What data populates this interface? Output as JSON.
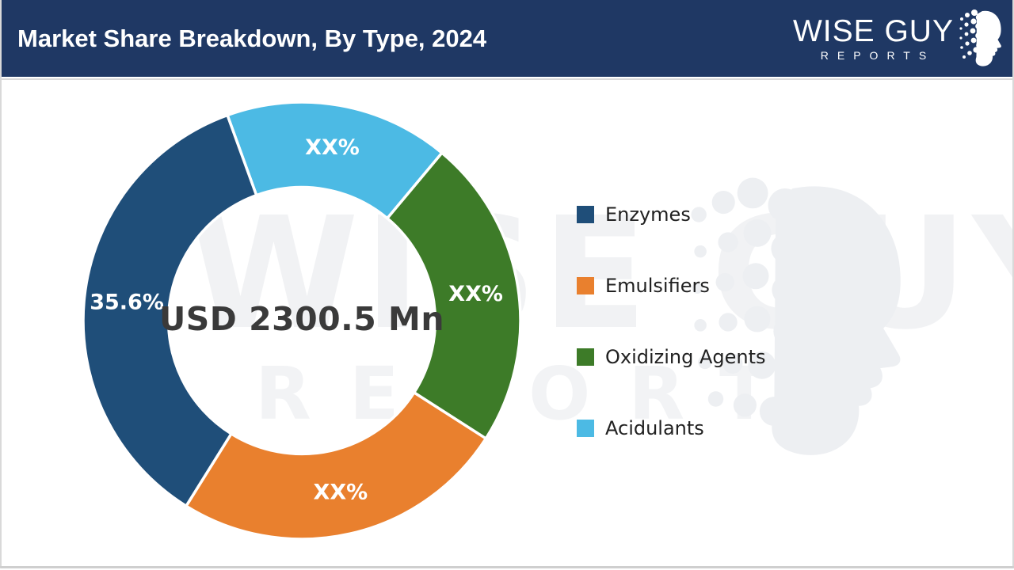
{
  "header": {
    "title": "Market Share Breakdown, By Type, 2024",
    "bg_color": "#1F3864",
    "logo_line1": "WISE GUY",
    "logo_line2": "REPORTS"
  },
  "watermark": {
    "line1": "WISE GUY",
    "line2": "REPORTS"
  },
  "chart_data": {
    "type": "donut",
    "center_label": "USD 2300.5 Mn",
    "start_angle_deg": -19.9,
    "direction": "clockwise",
    "inner_radius_ratio": 0.61,
    "slices": [
      {
        "label": "Acidulants",
        "value_pct": 16.6,
        "display_label": "XX%",
        "color": "#4CBAE4"
      },
      {
        "label": "Oxidizing Agents",
        "value_pct": 23.0,
        "display_label": "XX%",
        "color": "#3D7B28"
      },
      {
        "label": "Emulsifiers",
        "value_pct": 24.8,
        "display_label": "XX%",
        "color": "#E9802E"
      },
      {
        "label": "Enzymes",
        "value_pct": 35.6,
        "display_label": "35.6%",
        "color": "#1F4E79"
      }
    ],
    "legend_position": "right",
    "grid": false
  },
  "legend": {
    "items": [
      {
        "label": "Enzymes",
        "color": "#1F4E79"
      },
      {
        "label": "Emulsifiers",
        "color": "#E9802E"
      },
      {
        "label": "Oxidizing Agents",
        "color": "#3D7B28"
      },
      {
        "label": "Acidulants",
        "color": "#4CBAE4"
      }
    ]
  }
}
